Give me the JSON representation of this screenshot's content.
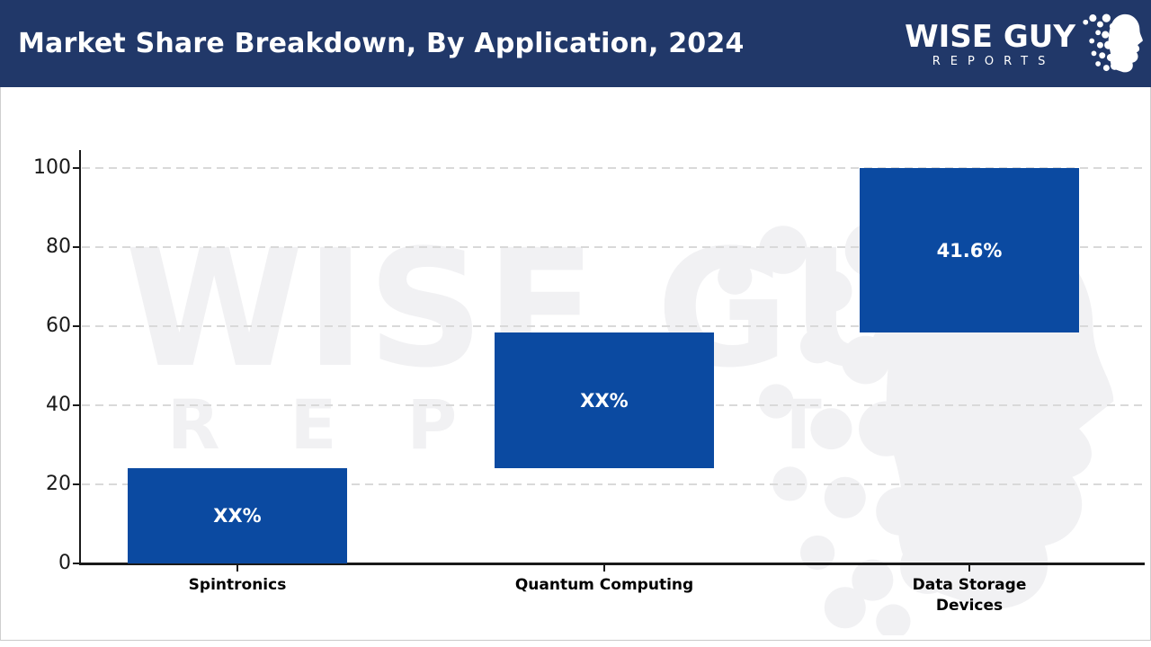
{
  "header": {
    "title": "Market Share Breakdown, By Application, 2024",
    "logo": {
      "wordmark": "WISE GUY",
      "subtext": "REPORTS",
      "face_icon": "dotted-face-profile"
    }
  },
  "watermark": {
    "wordmark": "WISE GUY",
    "subtext": "REPORTS",
    "face_icon": "dotted-face-profile"
  },
  "theme": {
    "header_bg": "#213869",
    "bar_blue": "#0b4aa1",
    "watermark_gray": "#f1f1f3",
    "gridline_gray": "#d9d9d9",
    "axis_color": "#1a1a1a"
  },
  "chart_data": {
    "type": "bar",
    "subtype": "waterfall",
    "title": "Market Share Breakdown, By Application, 2024",
    "categories": [
      "Spintronics",
      "Quantum Computing",
      "Data Storage\nDevices"
    ],
    "segments": [
      {
        "category": "Spintronics",
        "start": 0,
        "end": 24,
        "value_label": "XX%"
      },
      {
        "category": "Quantum Computing",
        "start": 24,
        "end": 58.4,
        "value_label": "XX%"
      },
      {
        "category": "Data Storage Devices",
        "start": 58.4,
        "end": 100,
        "value_label": "41.6%",
        "value": 41.6
      }
    ],
    "ylim": [
      0,
      100
    ],
    "yticks": [
      0,
      20,
      40,
      60,
      80,
      100
    ],
    "xlabel": "",
    "ylabel": "",
    "grid": "horizontal-dashed",
    "legend": "none",
    "bar_color": "#0b4aa1",
    "value_label_color": "#ffffff"
  }
}
